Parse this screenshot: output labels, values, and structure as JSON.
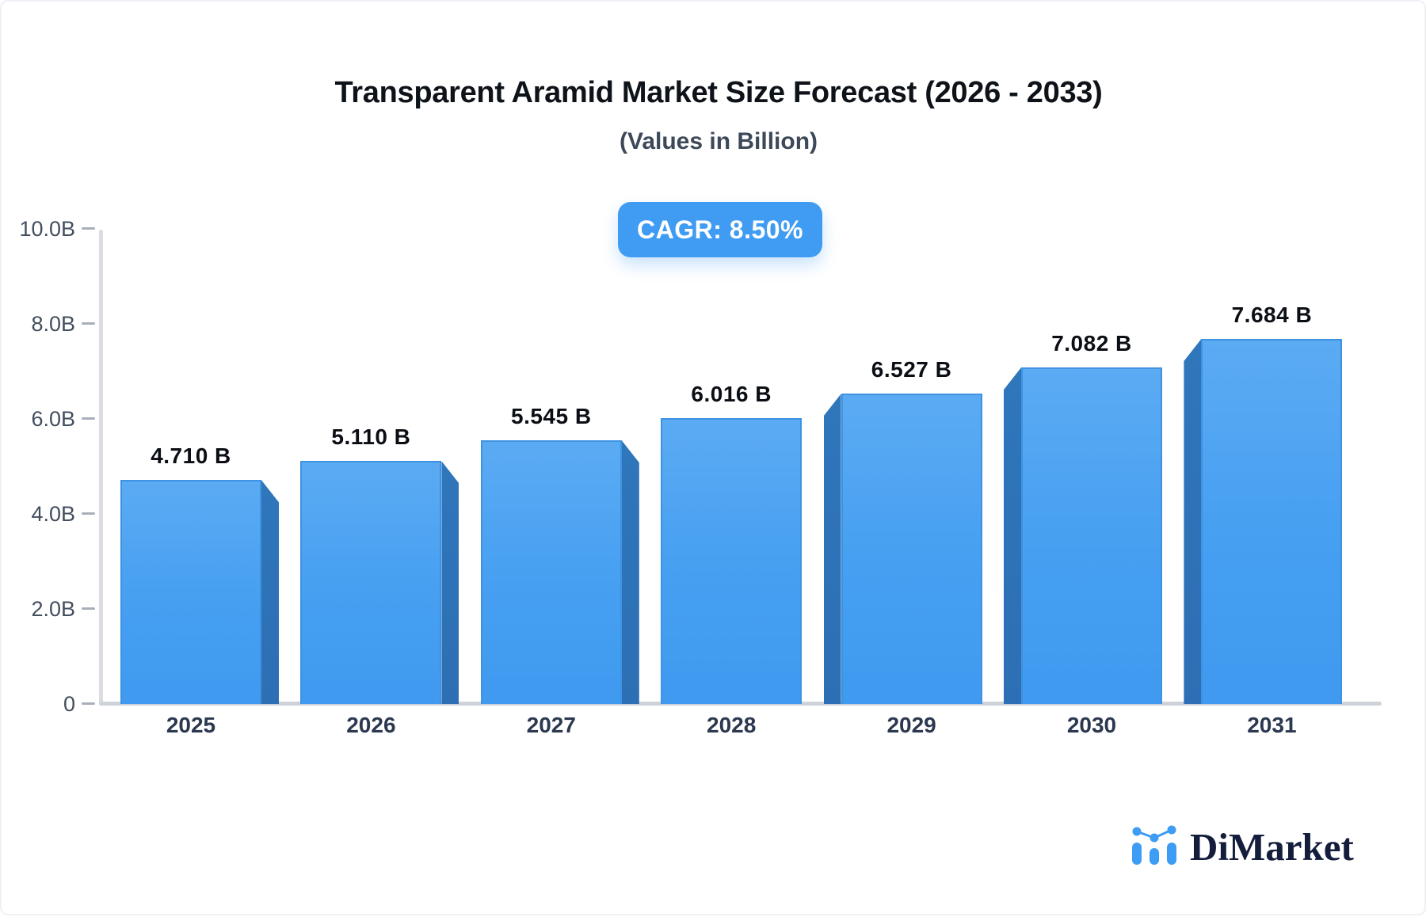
{
  "title": "Transparent Aramid Market Size Forecast (2026 - 2033)",
  "subtitle": "(Values in Billion)",
  "badge": {
    "label": "CAGR: 8.50%",
    "bg_color": "#3f9cf2",
    "text_color": "#ffffff"
  },
  "chart_data": {
    "type": "bar",
    "categories": [
      "2025",
      "2026",
      "2027",
      "2028",
      "2029",
      "2030",
      "2031"
    ],
    "values": [
      4.71,
      5.11,
      5.545,
      6.016,
      6.527,
      7.082,
      7.684
    ],
    "value_labels": [
      "4.710 B",
      "5.110 B",
      "5.545 B",
      "6.016 B",
      "6.527 B",
      "7.082 B",
      "7.684 B"
    ],
    "title": "Transparent Aramid Market Size Forecast (2026 - 2033)",
    "subtitle": "(Values in Billion)",
    "xlabel": "",
    "ylabel": "",
    "ylim": [
      0,
      10
    ],
    "yticks": [
      {
        "label": "0",
        "value": 0
      },
      {
        "label": "2.0B",
        "value": 2
      },
      {
        "label": "4.0B",
        "value": 4
      },
      {
        "label": "6.0B",
        "value": 6
      },
      {
        "label": "8.0B",
        "value": 8
      },
      {
        "label": "10.0B",
        "value": 10
      }
    ],
    "grid": false,
    "legend": null,
    "bar_style_3d": true,
    "colors": {
      "bar_face_top": "#5babf3",
      "bar_face_bottom": "#3f9af0",
      "bar_border": "#3e92e2",
      "bar_side": "#2e74b9",
      "axis_line": "#d9dce2",
      "tick": "#a9afba",
      "title_text": "#0e1319",
      "subtitle_text": "#3d4858",
      "axis_label_text": "#434e5e"
    }
  },
  "logo": {
    "text": "DiMarket",
    "icon": "bar-line-chart-icon",
    "icon_color": "#3d9cf3",
    "text_color": "#141d3b"
  }
}
